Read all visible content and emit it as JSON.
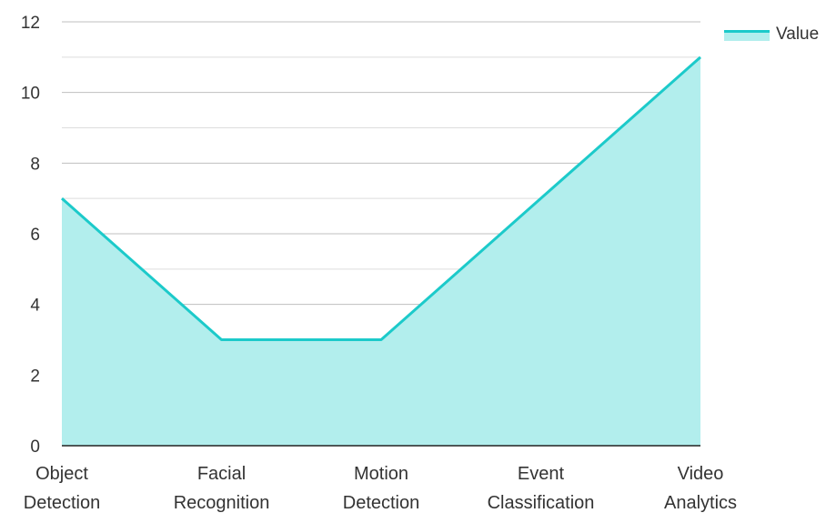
{
  "chart_data": {
    "type": "area",
    "categories": [
      "Object Detection",
      "Facial Recognition",
      "Motion Detection",
      "Event Classification",
      "Video Analytics"
    ],
    "category_lines": [
      [
        "Object",
        "Detection"
      ],
      [
        "Facial",
        "Recognition"
      ],
      [
        "Motion",
        "Detection"
      ],
      [
        "Event",
        "Classification"
      ],
      [
        "Video",
        "Analytics"
      ]
    ],
    "series": [
      {
        "name": "Value",
        "values": [
          7,
          3,
          3,
          7,
          11
        ]
      }
    ],
    "ylim": [
      0,
      12
    ],
    "yticks": [
      "0",
      "2",
      "4",
      "6",
      "8",
      "10",
      "12"
    ],
    "grid": true,
    "legend_position": "top-right",
    "colors": {
      "line": "#1CCACA",
      "fill": "#B2EEED",
      "grid": "#BFBFBF",
      "axis": "#222222"
    }
  }
}
